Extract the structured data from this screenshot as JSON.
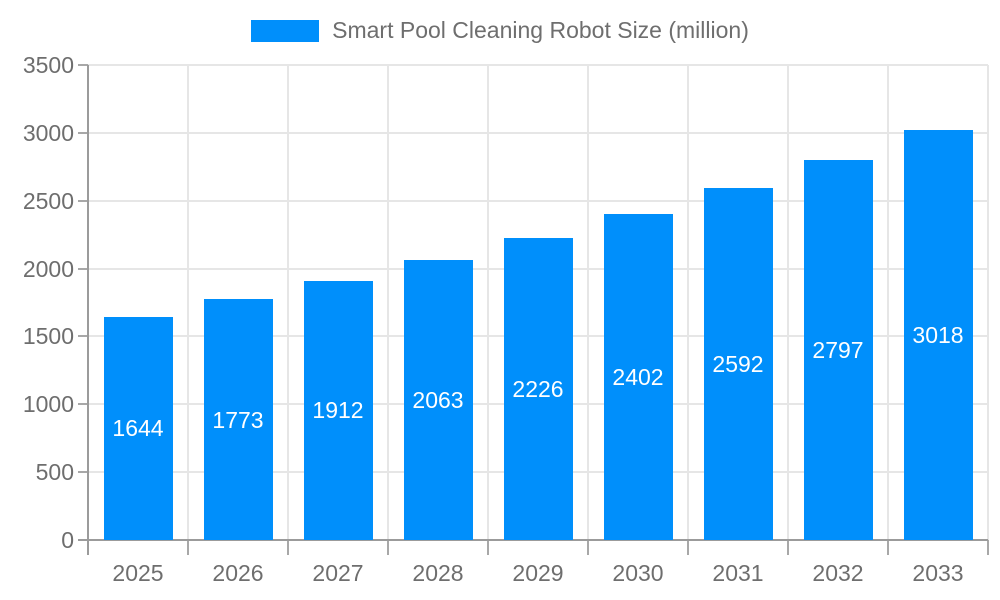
{
  "legend": {
    "label": "Smart Pool Cleaning Robot Size (million)"
  },
  "chart_data": {
    "type": "bar",
    "title": "Smart Pool Cleaning Robot Size (million)",
    "categories": [
      "2025",
      "2026",
      "2027",
      "2028",
      "2029",
      "2030",
      "2031",
      "2032",
      "2033"
    ],
    "values": [
      1644,
      1773,
      1912,
      2063,
      2226,
      2402,
      2592,
      2797,
      3018
    ],
    "xlabel": "",
    "ylabel": "",
    "ylim": [
      0,
      3500
    ],
    "yticks": [
      0,
      500,
      1000,
      1500,
      2000,
      2500,
      3000,
      3500
    ],
    "grid": true,
    "legend_position": "top-center",
    "bar_label_position": "inside-center",
    "colors": {
      "bar_fill": "#008FFB",
      "bar_value_text": "#ffffff",
      "axis_text": "#6e6e6e",
      "grid_line": "#e6e6e6",
      "axis_line": "#9b9b9b",
      "tick_mark": "#a8a8a8",
      "background": "#ffffff"
    }
  }
}
